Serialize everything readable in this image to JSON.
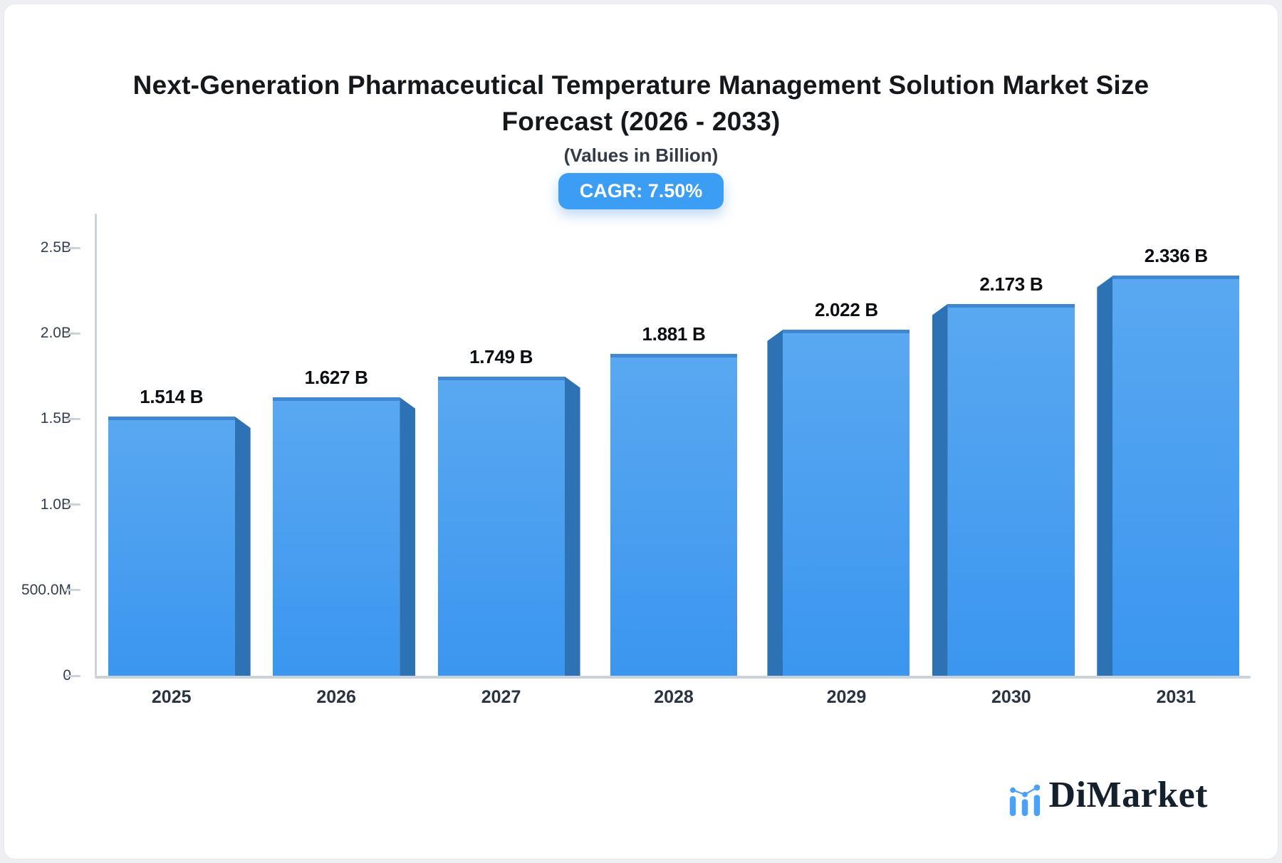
{
  "page": {
    "background": "#edeff2",
    "card_background": "#ffffff"
  },
  "header": {
    "title_line1": "Next-Generation Pharmaceutical Temperature Management Solution Market Size",
    "title_line2": "Forecast (2026 - 2033)",
    "subtitle": "(Values in Billion)",
    "cagr_label": "CAGR: 7.50%",
    "cagr_badge_color": "#3b9df4"
  },
  "chart_data": {
    "type": "bar",
    "title": "Next-Generation Pharmaceutical Temperature Management Solution Market Size Forecast (2026 - 2033)",
    "subtitle": "(Values in Billion)",
    "cagr_percent": 7.5,
    "categories": [
      "2025",
      "2026",
      "2027",
      "2028",
      "2029",
      "2030",
      "2031"
    ],
    "values": [
      1.514,
      1.627,
      1.749,
      1.881,
      2.022,
      2.173,
      2.336
    ],
    "value_labels": [
      "1.514 B",
      "1.627 B",
      "1.749 B",
      "1.881 B",
      "2.022 B",
      "2.173 B",
      "2.336 B"
    ],
    "unit_suffix": "B",
    "ylim": [
      0,
      2.5
    ],
    "y_ticks": [
      {
        "value": 0,
        "label": "0"
      },
      {
        "value": 0.5,
        "label": "500.0M"
      },
      {
        "value": 1.0,
        "label": "1.0B"
      },
      {
        "value": 1.5,
        "label": "1.5B"
      },
      {
        "value": 2.0,
        "label": "2.0B"
      },
      {
        "value": 2.5,
        "label": "2.5B"
      }
    ],
    "bar_3d_side": [
      "right",
      "right",
      "right",
      "none",
      "left",
      "left",
      "left"
    ],
    "grid": false,
    "legend": false,
    "colors": {
      "face_top": "#59a8f1",
      "face_bottom": "#3b96ef",
      "face_cap": "#3d87d3",
      "side_panel": "#2d72b4",
      "axis": "#ccd2d9",
      "value_label": "#0a0d11",
      "tick_label": "#333e4f"
    }
  },
  "footer": {
    "brand": "DiMarket",
    "logo_icon": "mini-bar-chart-icon",
    "logo_icon_color": "#4aa1f6",
    "logo_text_color": "#15202d"
  }
}
